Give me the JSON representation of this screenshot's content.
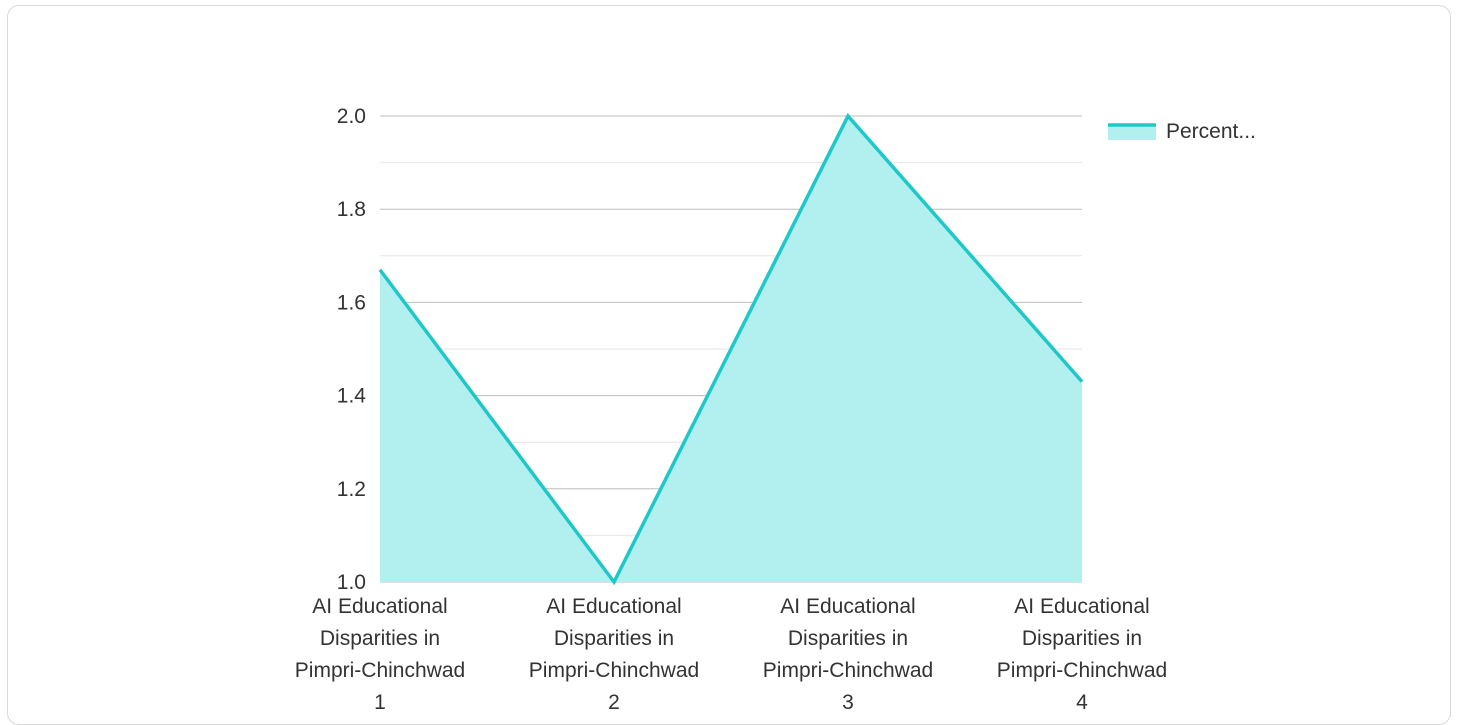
{
  "chart_data": {
    "type": "area",
    "categories": [
      [
        "AI Educational",
        "Disparities in",
        "Pimpri-Chinchwad",
        "1"
      ],
      [
        "AI Educational",
        "Disparities in",
        "Pimpri-Chinchwad",
        "2"
      ],
      [
        "AI Educational",
        "Disparities in",
        "Pimpri-Chinchwad",
        "3"
      ],
      [
        "AI Educational",
        "Disparities in",
        "Pimpri-Chinchwad",
        "4"
      ]
    ],
    "series": [
      {
        "name": "Percent...",
        "values": [
          1.67,
          1.0,
          2.0,
          1.43
        ]
      }
    ],
    "ylim": [
      1.0,
      2.0
    ],
    "yticks": [
      "1.0",
      "1.2",
      "1.4",
      "1.6",
      "1.8",
      "2.0"
    ],
    "grid": true,
    "legend": "top-right",
    "colors": {
      "line": "#1fc8c8",
      "fill": "#b2efef",
      "grid_major": "#bdbdbd",
      "grid_minor": "#e6e6e6"
    }
  }
}
